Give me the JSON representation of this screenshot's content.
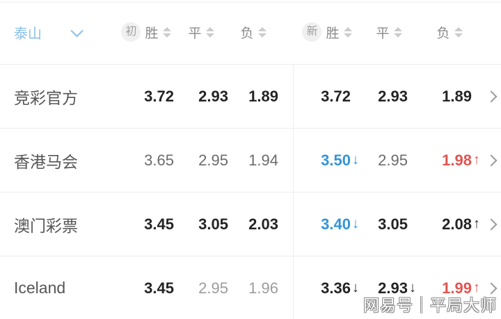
{
  "header": {
    "team_selector": {
      "label": "泰山"
    },
    "groups": [
      {
        "badge": "初",
        "columns": [
          {
            "label": "胜"
          },
          {
            "label": "平"
          },
          {
            "label": "负"
          }
        ]
      },
      {
        "badge": "新",
        "columns": [
          {
            "label": "胜"
          },
          {
            "label": "平"
          },
          {
            "label": "负"
          }
        ]
      }
    ]
  },
  "rows": [
    {
      "name": "竞彩官方",
      "initial": [
        {
          "value": "3.72",
          "style": "b-dark"
        },
        {
          "value": "2.93",
          "style": "b-dark"
        },
        {
          "value": "1.89",
          "style": "b-dark"
        }
      ],
      "latest": [
        {
          "value": "3.72",
          "style": "b-dark",
          "arrow": "",
          "arrow_style": ""
        },
        {
          "value": "2.93",
          "style": "b-dark",
          "arrow": "",
          "arrow_style": ""
        },
        {
          "value": "1.89",
          "style": "b-dark",
          "arrow": "",
          "arrow_style": ""
        }
      ]
    },
    {
      "name": "香港马会",
      "initial": [
        {
          "value": "3.65",
          "style": "r-gray"
        },
        {
          "value": "2.95",
          "style": "r-gray"
        },
        {
          "value": "1.94",
          "style": "r-gray"
        }
      ],
      "latest": [
        {
          "value": "3.50",
          "style": "b-blue",
          "arrow": "↓",
          "arrow_style": "a-blue"
        },
        {
          "value": "2.95",
          "style": "r-gray",
          "arrow": "",
          "arrow_style": ""
        },
        {
          "value": "1.98",
          "style": "b-red",
          "arrow": "↑",
          "arrow_style": "a-red"
        }
      ]
    },
    {
      "name": "澳门彩票",
      "initial": [
        {
          "value": "3.45",
          "style": "b-dark"
        },
        {
          "value": "3.05",
          "style": "b-dark"
        },
        {
          "value": "2.03",
          "style": "b-dark"
        }
      ],
      "latest": [
        {
          "value": "3.40",
          "style": "b-blue",
          "arrow": "↓",
          "arrow_style": "a-blue"
        },
        {
          "value": "3.05",
          "style": "b-dark",
          "arrow": "",
          "arrow_style": ""
        },
        {
          "value": "2.08",
          "style": "b-dark",
          "arrow": "↑",
          "arrow_style": "a-dark"
        }
      ]
    },
    {
      "name": "Iceland",
      "initial": [
        {
          "value": "3.45",
          "style": "b-dark"
        },
        {
          "value": "2.95",
          "style": "l-gray"
        },
        {
          "value": "1.96",
          "style": "l-gray"
        }
      ],
      "latest": [
        {
          "value": "3.36",
          "style": "b-dark",
          "arrow": "↓",
          "arrow_style": "a-dark"
        },
        {
          "value": "2.93",
          "style": "b-dark",
          "arrow": "↓",
          "arrow_style": "a-dark"
        },
        {
          "value": "1.99",
          "style": "b-red",
          "arrow": "↑",
          "arrow_style": "a-red"
        }
      ]
    }
  ],
  "watermark": {
    "text": "网易号｜平局大师"
  },
  "colors": {
    "team_blue": "#89bfe9",
    "odds_drop_blue": "#3494d8",
    "odds_rise_red": "#e15551",
    "dark_text": "#242424",
    "divider": "#ececec"
  }
}
